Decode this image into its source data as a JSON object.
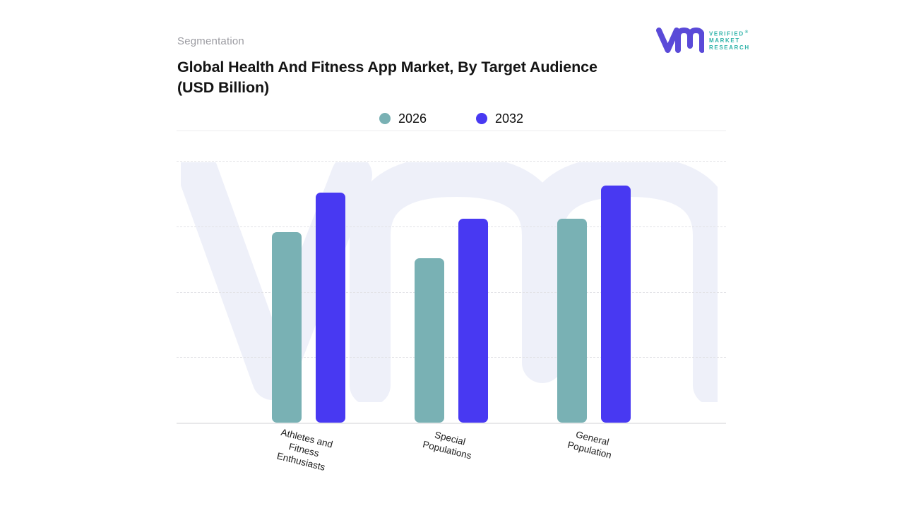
{
  "page": {
    "eyebrow": "Segmentation",
    "title_line1": "Global Health And Fitness App Market, By Target Audience",
    "title_line2": "(USD Billion)"
  },
  "logo": {
    "brand_lines": [
      "VERIFIED",
      "MARKET",
      "RESEARCH"
    ],
    "registered_mark": "®",
    "mark_color": "#5a4ad8",
    "text_color": "#2fb3a9"
  },
  "chart_data": {
    "type": "bar",
    "title": "Global Health And Fitness App Market, By Target Audience (USD Billion)",
    "units": "USD Billion",
    "categories": [
      "Athletes and Fitness Enthusiasts",
      "Special Populations",
      "General Population"
    ],
    "category_label_lines": [
      [
        "Athletes and",
        "Fitness",
        "Enthusiasts"
      ],
      [
        "Special",
        "Populations"
      ],
      [
        "General",
        "Population"
      ]
    ],
    "series": [
      {
        "name": "2026",
        "color": "#79b1b4",
        "values": [
          2.9,
          2.5,
          3.1
        ]
      },
      {
        "name": "2032",
        "color": "#4839f2",
        "values": [
          3.5,
          3.1,
          3.6
        ]
      }
    ],
    "ylim": [
      0,
      4
    ],
    "y_axis_labels_visible": false,
    "gridlines": "horizontal-dashed",
    "legend_position": "top-center",
    "watermark": "vm-monogram",
    "watermark_color": "#eef0f9"
  }
}
